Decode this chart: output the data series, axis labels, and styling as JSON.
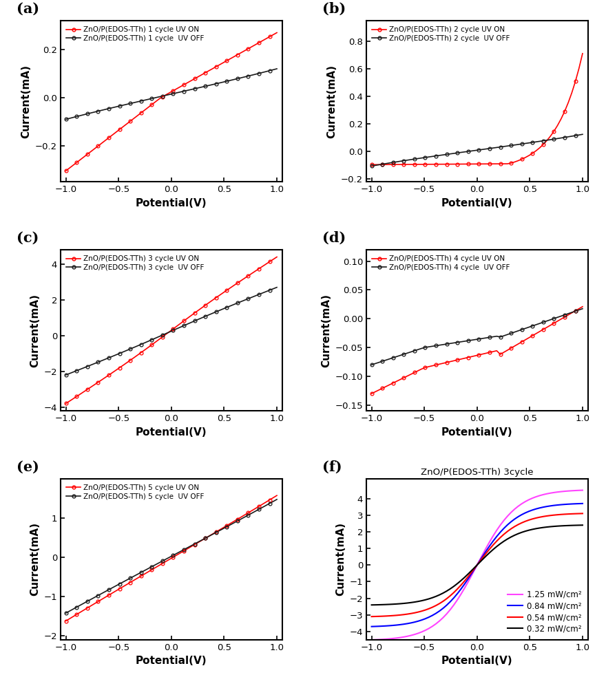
{
  "panels": [
    {
      "label": "(a)",
      "legend_on": [
        "ZnO/P(EDOS-TTh) 1 cycle UV ON",
        "ZnO/P(EDOS-TTh) 1 cycle  UV OFF"
      ],
      "ylim": [
        -0.35,
        0.32
      ],
      "yticks": [
        -0.2,
        0.0,
        0.2
      ],
      "ylabel": "Current(mA)"
    },
    {
      "label": "(b)",
      "legend_on": [
        "ZnO/P(EDOS-TTh) 2 cycle UV ON",
        "ZnO/P(EDOS-TTh) 2 cycle  UV OFF"
      ],
      "ylim": [
        -0.22,
        0.95
      ],
      "yticks": [
        -0.2,
        0.0,
        0.2,
        0.4,
        0.6,
        0.8
      ],
      "ylabel": "Current(mA)"
    },
    {
      "label": "(c)",
      "legend_on": [
        "ZnO/P(EDOS-TTh) 3 cycle UV ON",
        "ZnO/P(EDOS-TTh) 3 cycle  UV OFF"
      ],
      "ylim": [
        -4.2,
        4.8
      ],
      "yticks": [
        -4,
        -2,
        0,
        2,
        4
      ],
      "ylabel": "Current(mA)"
    },
    {
      "label": "(d)",
      "legend_on": [
        "ZnO/P(EDOS-TTh) 4 cycle UV ON",
        "ZnO/P(EDOS-TTh) 4 cycle  UV OFF"
      ],
      "ylim": [
        -0.16,
        0.12
      ],
      "yticks": [
        -0.15,
        -0.1,
        -0.05,
        0.0,
        0.05,
        0.1
      ],
      "ylabel": "Current(mA)"
    },
    {
      "label": "(e)",
      "legend_on": [
        "ZnO/P(EDOS-TTh) 5 cycle UV ON",
        "ZnO/P(EDOS-TTh) 5 cycle  UV OFF"
      ],
      "ylim": [
        -2.1,
        2.0
      ],
      "yticks": [
        -2,
        -1,
        0,
        1
      ],
      "ylabel": "Current(mA)"
    }
  ],
  "panel_f": {
    "label": "(f)",
    "title": "ZnO/P(EDOS-TTh) 3cycle",
    "ylabel": "Current(mA)",
    "ylim": [
      -4.5,
      5.2
    ],
    "yticks": [
      -4,
      -3,
      -2,
      -1,
      0,
      1,
      2,
      3,
      4
    ],
    "colors": [
      "#FF44FF",
      "#0000FF",
      "#FF0000",
      "#000000"
    ],
    "legend_labels": [
      "1.25 mW/cm²",
      "0.84 mW/cm²",
      "0.54 mW/cm²",
      "0.32 mW/cm²"
    ]
  },
  "xlabel": "Potential(V)",
  "xlim": [
    -1.05,
    1.05
  ],
  "xticks": [
    -1.0,
    -0.5,
    0.0,
    0.5,
    1.0
  ],
  "red_color": "#FF0000",
  "black_color": "#1a1a1a",
  "marker_size": 3.5,
  "linewidth": 1.2,
  "background_color": "#ffffff"
}
